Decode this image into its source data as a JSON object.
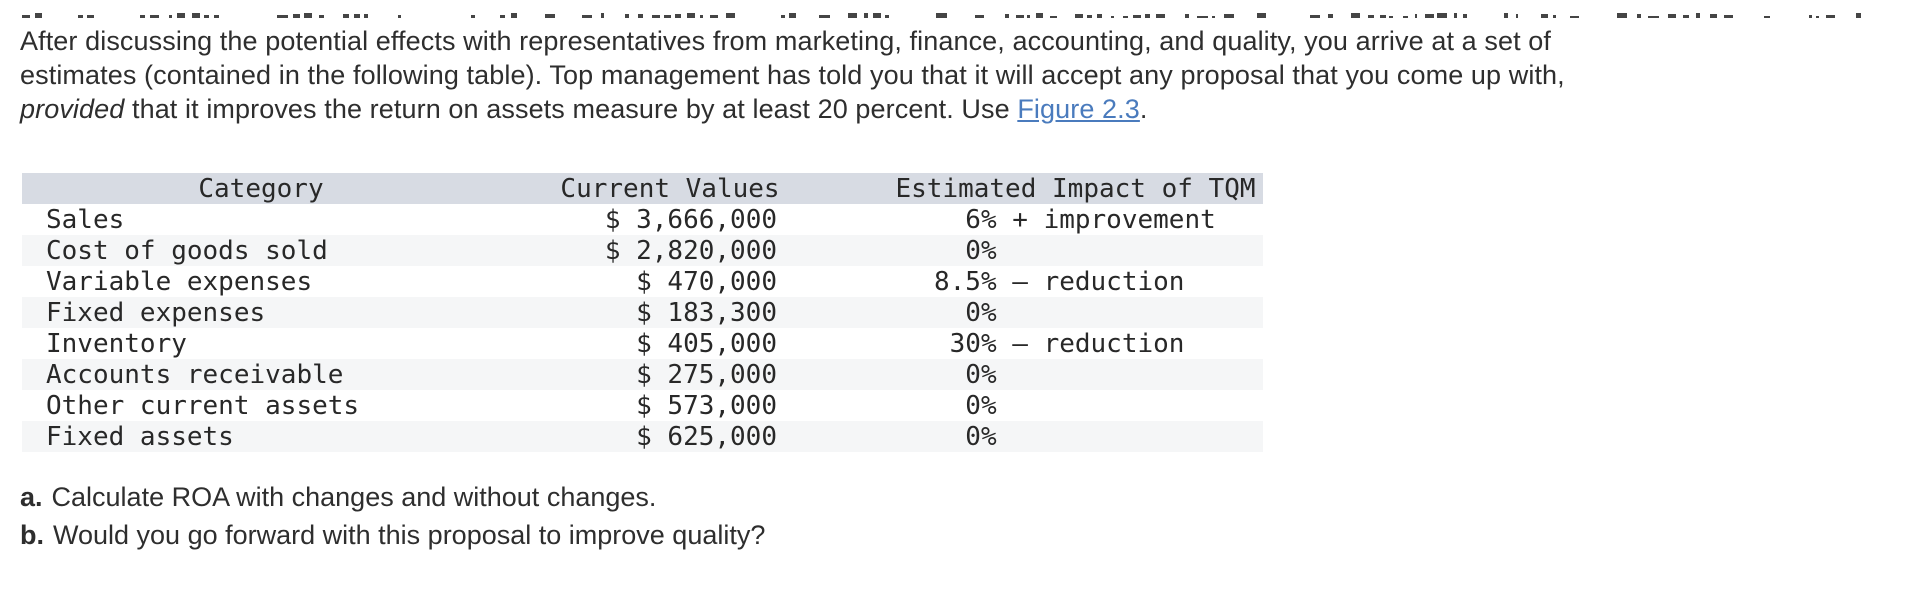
{
  "page": {
    "paragraph_lines": [
      [
        {
          "text": "After discussing the potential effects with representatives from marketing, finance, accounting, and quality, you arrive at a set of",
          "style": "normal"
        }
      ],
      [
        {
          "text": "estimates (contained in the following table). Top management has told you that it will accept any proposal that you come up with,",
          "style": "normal"
        }
      ],
      [
        {
          "text": "provided",
          "style": "italic"
        },
        {
          "text": " that it improves the return on assets measure by at least 20 percent. Use ",
          "style": "normal"
        },
        {
          "text": "Figure 2.3",
          "style": "link"
        },
        {
          "text": ".",
          "style": "normal"
        }
      ]
    ],
    "questions": [
      {
        "label": "a.",
        "text": "Calculate ROA with changes and without changes."
      },
      {
        "label": "b.",
        "text": "Would you go forward with this proposal to improve quality?"
      }
    ]
  },
  "table": {
    "headers": [
      "Category",
      "Current Values",
      "Estimated Impact of TQM"
    ],
    "rows": [
      {
        "category": "Sales",
        "current_value": "$ 3,666,000",
        "impact_pct": "6%",
        "impact_note": "+ improvement"
      },
      {
        "category": "Cost of goods sold",
        "current_value": "$ 2,820,000",
        "impact_pct": "0%",
        "impact_note": ""
      },
      {
        "category": "Variable expenses",
        "current_value": "$ 470,000",
        "impact_pct": "8.5%",
        "impact_note": "– reduction"
      },
      {
        "category": "Fixed expenses",
        "current_value": "$ 183,300",
        "impact_pct": "0%",
        "impact_note": ""
      },
      {
        "category": "Inventory",
        "current_value": "$ 405,000",
        "impact_pct": "30%",
        "impact_note": "– reduction"
      },
      {
        "category": "Accounts receivable",
        "current_value": "$ 275,000",
        "impact_pct": "0%",
        "impact_note": ""
      },
      {
        "category": "Other current assets",
        "current_value": "$ 573,000",
        "impact_pct": "0%",
        "impact_note": ""
      },
      {
        "category": "Fixed assets",
        "current_value": "$ 625,000",
        "impact_pct": "0%",
        "impact_note": ""
      }
    ]
  },
  "colors": {
    "link": "#4a7bbd",
    "header_bg": "#d7dbe3",
    "row_alt_bg": "#f5f6f7",
    "text": "#2e2e2e"
  }
}
